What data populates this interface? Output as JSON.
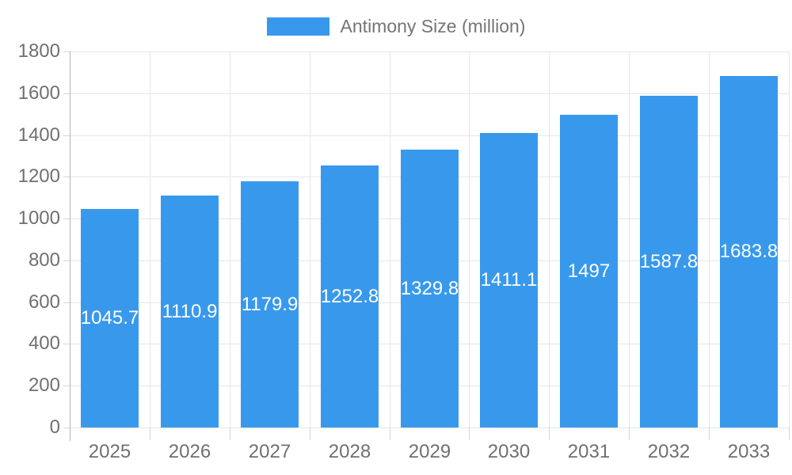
{
  "chart_data": {
    "type": "bar",
    "title": "Antimony Size (million)",
    "legend_position": "top",
    "categories": [
      "2025",
      "2026",
      "2027",
      "2028",
      "2029",
      "2030",
      "2031",
      "2032",
      "2033"
    ],
    "values": [
      1045.7,
      1110.9,
      1179.9,
      1252.8,
      1329.8,
      1411.1,
      1497,
      1587.8,
      1683.8
    ],
    "value_labels": [
      "1045.7",
      "1110.9",
      "1179.9",
      "1252.8",
      "1329.8",
      "1411.1",
      "1497",
      "1587.8",
      "1683.8"
    ],
    "xlabel": "",
    "ylabel": "",
    "ylim": [
      0,
      1800
    ],
    "yticks": [
      0,
      200,
      400,
      600,
      800,
      1000,
      1200,
      1400,
      1600,
      1800
    ],
    "grid": true,
    "colors": {
      "bar": "#3899EC",
      "grid": "#E6E6E6",
      "axis_line": "#B3B3B3",
      "tick": "#D6D6D6",
      "axis_text": "#707070",
      "legend_text": "#757575",
      "value_label_text": "#FFFFFF",
      "background": "#FFFFFF"
    }
  }
}
